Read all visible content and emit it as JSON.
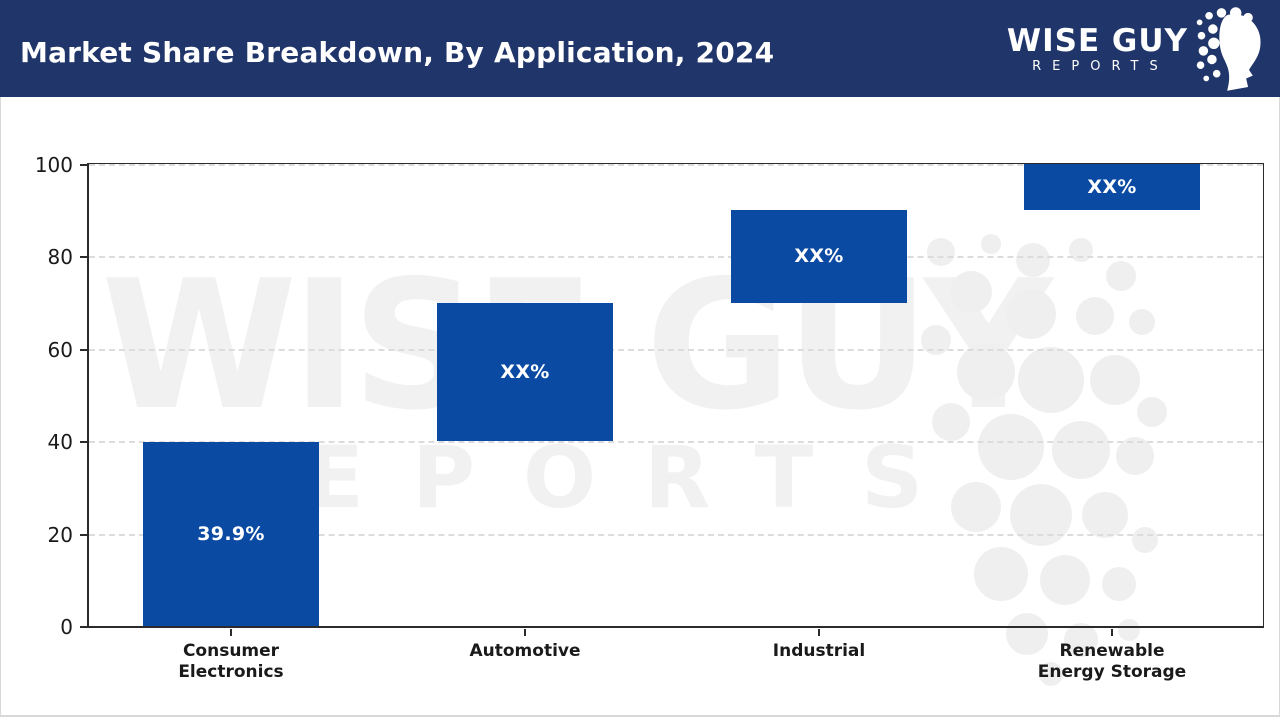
{
  "header": {
    "title": "Market Share Breakdown, By Application, 2024",
    "logo": {
      "line1": "WISE GUY",
      "line2": "REPORTS"
    }
  },
  "watermark": {
    "line1": "WISE GUY",
    "line2": "REPORTS"
  },
  "chart_data": {
    "type": "bar",
    "subtype": "waterfall",
    "title": "Market Share Breakdown, By Application, 2024",
    "categories": [
      "Consumer Electronics",
      "Automotive",
      "Industrial",
      "Renewable Energy Storage"
    ],
    "bars": [
      {
        "label": "39.9%",
        "start": 0,
        "end": 39.9
      },
      {
        "label": "XX%",
        "start": 40,
        "end": 70
      },
      {
        "label": "XX%",
        "start": 70,
        "end": 90
      },
      {
        "label": "XX%",
        "start": 90,
        "end": 100
      }
    ],
    "xlabel": "",
    "ylabel": "",
    "ylim": [
      0,
      100
    ],
    "yticks": [
      0,
      20,
      40,
      60,
      80,
      100
    ],
    "grid": "horizontal-dashed",
    "legend": "none",
    "bar_color": "#0b4aa2",
    "label_color": "#ffffff"
  }
}
